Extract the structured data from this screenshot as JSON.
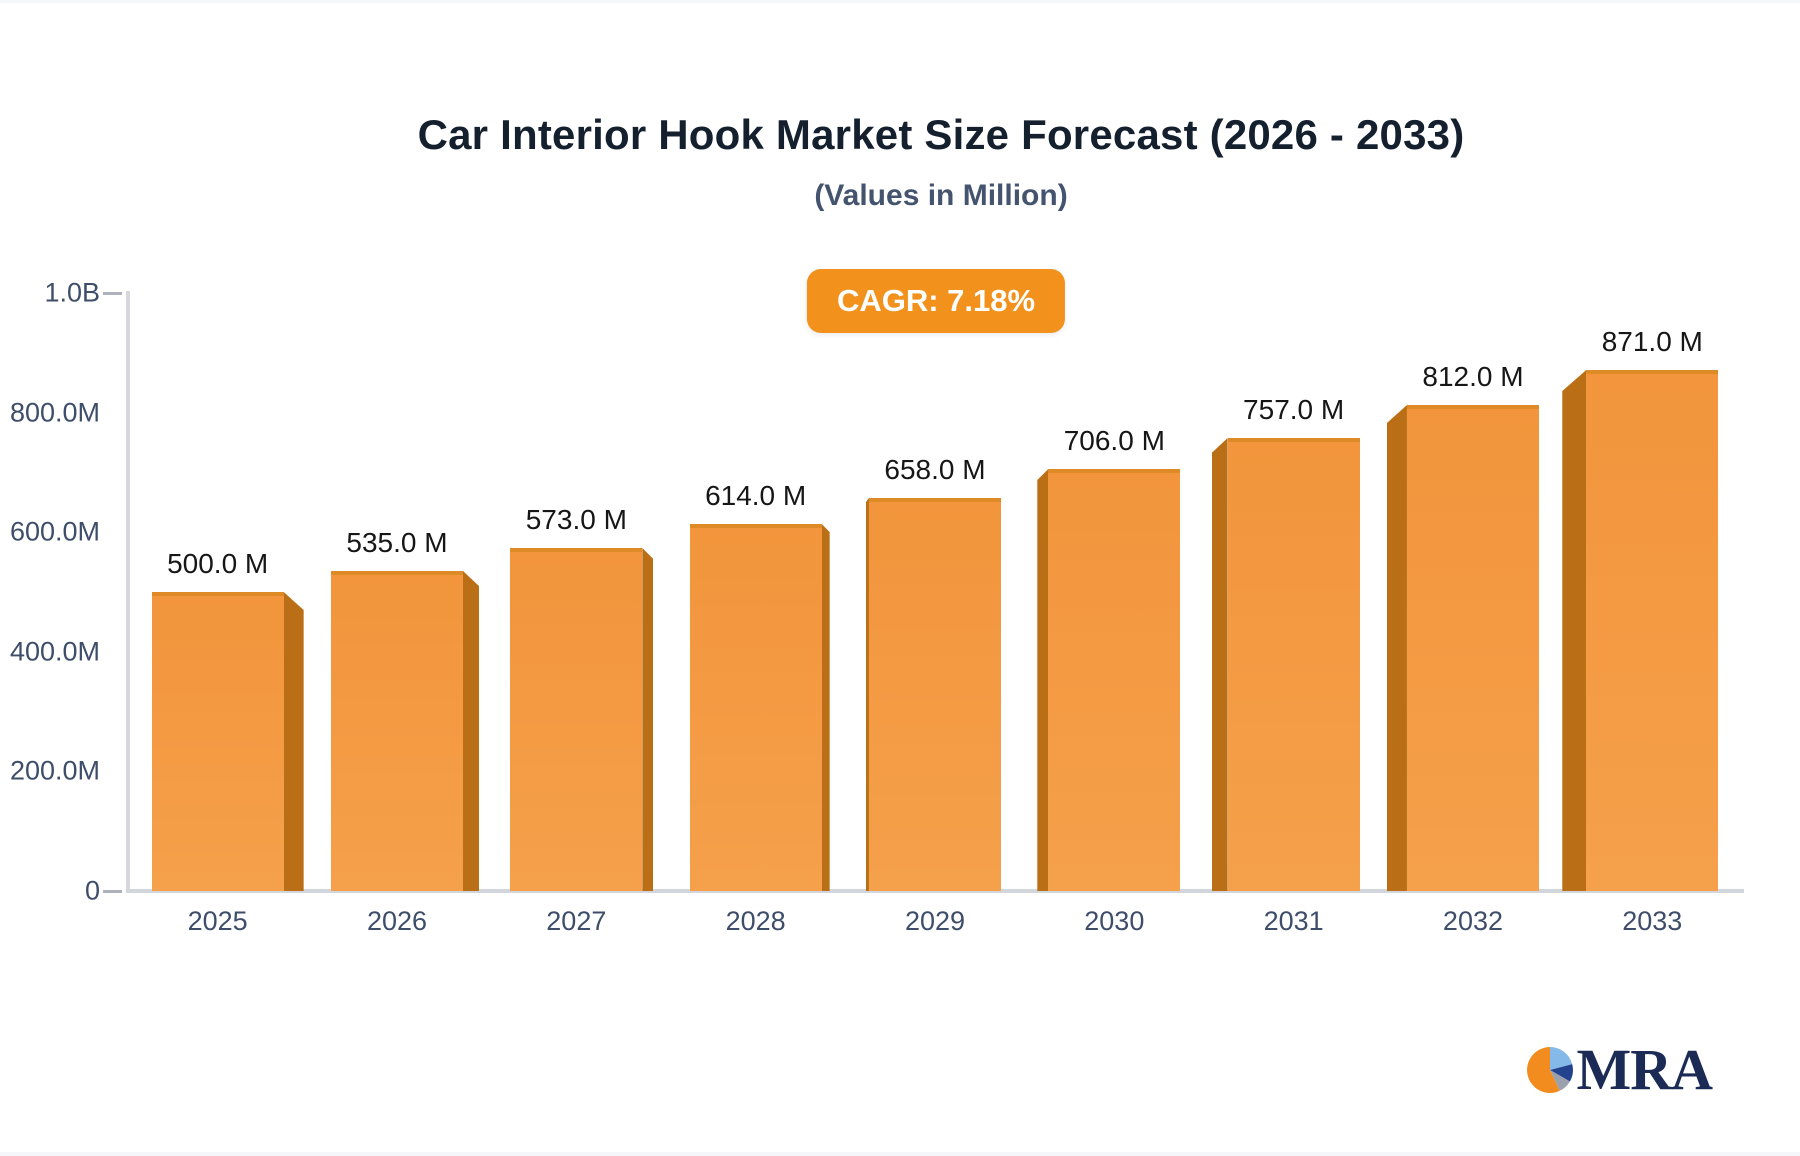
{
  "header": {
    "title": "Car Interior Hook Market Size Forecast (2026 - 2033)",
    "subtitle": "(Values in Million)"
  },
  "badge": {
    "label": "CAGR: 7.18%",
    "color": "#f2921d"
  },
  "chart_data": {
    "type": "bar",
    "title": "Car Interior Hook Market Size Forecast (2026 - 2033)",
    "subtitle": "(Values in Million)",
    "cagr_percent": 7.18,
    "categories": [
      "2025",
      "2026",
      "2027",
      "2028",
      "2029",
      "2030",
      "2031",
      "2032",
      "2033"
    ],
    "values": [
      500,
      535,
      573,
      614,
      658,
      706,
      757,
      812,
      871
    ],
    "value_labels": [
      "500.0 M",
      "535.0 M",
      "573.0 M",
      "614.0 M",
      "658.0 M",
      "706.0 M",
      "757.0 M",
      "812.0 M",
      "871.0 M"
    ],
    "xlabel": "",
    "ylabel": "",
    "ylim": [
      0,
      1000
    ],
    "y_ticks": [
      {
        "label": "1.0B",
        "value": 1000
      },
      {
        "label": "800.0M",
        "value": 800
      },
      {
        "label": "600.0M",
        "value": 600
      },
      {
        "label": "400.0M",
        "value": 400
      },
      {
        "label": "200.0M",
        "value": 200
      },
      {
        "label": "0",
        "value": 0
      }
    ],
    "grid": false,
    "legend": "none",
    "bar_color": "#f49a42",
    "bar_side_color": "#ba6f16",
    "bar_top_color": "#de8a26"
  },
  "logo": {
    "text": "MRA",
    "pie_colors": {
      "orange": "#f28c1e",
      "light_blue": "#85b9e9",
      "navy": "#24438f",
      "gray": "#9ba1ac"
    }
  }
}
